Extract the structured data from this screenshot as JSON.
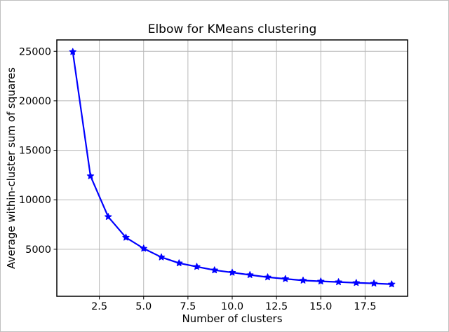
{
  "figure": {
    "background": "#ffffff",
    "border_color": "#c0c0c0"
  },
  "chart_data": {
    "type": "line",
    "title": "Elbow for KMeans clustering",
    "xlabel": "Number of clusters",
    "ylabel": "Average within-cluster sum of squares",
    "line_color": "#0000ff",
    "marker": "star",
    "grid": true,
    "grid_color": "#b8b8b8",
    "axis_color": "#000000",
    "xlim": [
      0.1,
      19.9
    ],
    "ylim": [
      250,
      26150
    ],
    "x_ticks": {
      "values": [
        2.5,
        5.0,
        7.5,
        10.0,
        12.5,
        15.0,
        17.5
      ],
      "labels": [
        "2.5",
        "5.0",
        "7.5",
        "10.0",
        "12.5",
        "15.0",
        "17.5"
      ]
    },
    "y_ticks": {
      "values": [
        5000,
        10000,
        15000,
        20000,
        25000
      ],
      "labels": [
        "5000",
        "10000",
        "15000",
        "20000",
        "25000"
      ]
    },
    "x": [
      1,
      2,
      3,
      4,
      5,
      6,
      7,
      8,
      9,
      10,
      11,
      12,
      13,
      14,
      15,
      16,
      17,
      18,
      19
    ],
    "y": [
      24950,
      12400,
      8280,
      6190,
      5080,
      4200,
      3600,
      3240,
      2890,
      2650,
      2410,
      2180,
      2010,
      1850,
      1760,
      1690,
      1610,
      1550,
      1470
    ]
  }
}
